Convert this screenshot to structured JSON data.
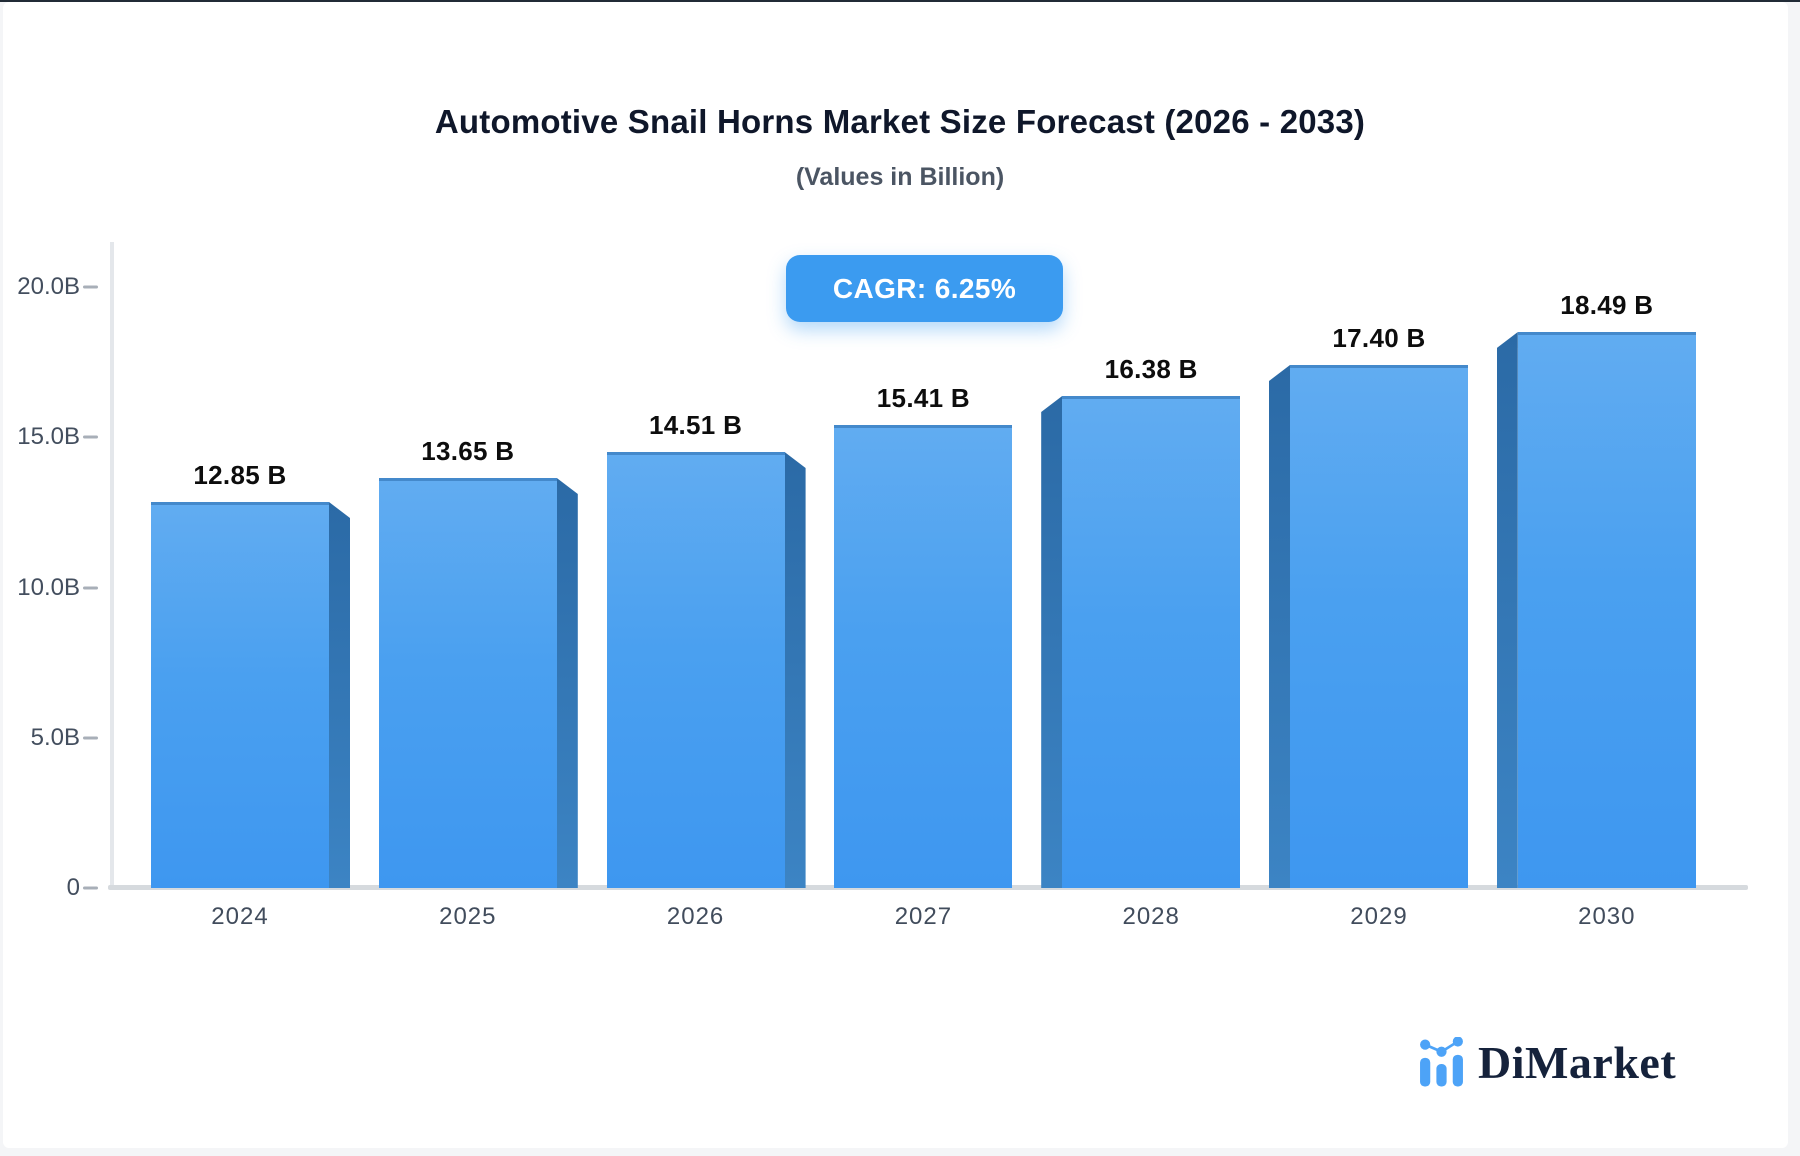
{
  "title": "Automotive Snail Horns Market Size Forecast (2026 - 2033)",
  "subtitle": "(Values in Billion)",
  "cagr_label": "CAGR: 6.25%",
  "brand": {
    "name": "DiMarket",
    "icon": "bar-chart-logo-icon"
  },
  "chart_data": {
    "type": "bar",
    "categories": [
      "2024",
      "2025",
      "2026",
      "2027",
      "2028",
      "2029",
      "2030"
    ],
    "values": [
      12.85,
      13.65,
      14.51,
      15.41,
      16.38,
      17.4,
      18.49
    ],
    "bar_labels": [
      "12.85 B",
      "13.65 B",
      "14.51 B",
      "15.41 B",
      "16.38 B",
      "17.40 B",
      "18.49 B"
    ],
    "y_ticks": [
      {
        "label": "20.0B",
        "value": 20
      },
      {
        "label": "15.0B",
        "value": 15
      },
      {
        "label": "10.0B",
        "value": 10
      },
      {
        "label": "5.0B",
        "value": 5
      },
      {
        "label": "0",
        "value": 0
      }
    ],
    "ylim": [
      0,
      20
    ],
    "xlabel": "",
    "ylabel": "",
    "grid": false,
    "legend": false,
    "bar_color": "#3E97F0",
    "bar_color_light": "#61ACF1",
    "bar_side_color": "#2F76B8",
    "axis_color": "#D6DADE",
    "accent": "#3B9BF0"
  }
}
